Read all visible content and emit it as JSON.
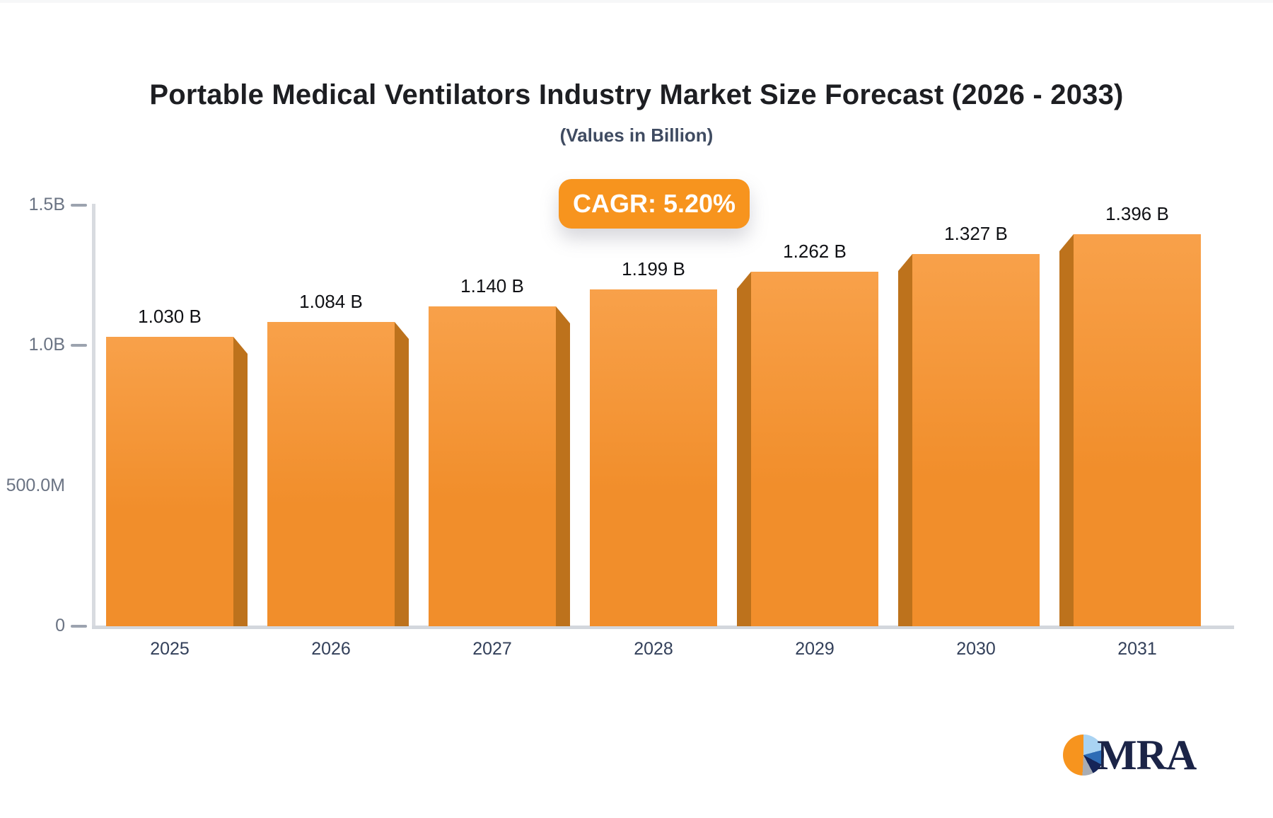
{
  "page": {
    "title": "Portable Medical Ventilators Industry Market Size Forecast (2026 - 2033)",
    "subtitle": "(Values in Billion)",
    "cagr_badge": "CAGR: 5.20%",
    "brand_name": "MRA"
  },
  "colors": {
    "accent_orange": "#F7941E",
    "bar_face_top": "#F8A14A",
    "bar_face_bottom": "#F18E2B",
    "bar_side": "#BD721C",
    "axis_line": "#D8DBE0",
    "tick_mark": "#9CA3AF",
    "y_label": "#6A7383",
    "x_label": "#33405A",
    "value_label": "#101115",
    "logo_navy": "#1B2447",
    "pie_lightblue": "#A9D3F2",
    "pie_royalblue": "#2E6CB5",
    "pie_navy": "#152558",
    "pie_gray": "#A8ADB5"
  },
  "chart_data": {
    "type": "bar",
    "title": "Portable Medical Ventilators Industry Market Size Forecast (2026 - 2033)",
    "subtitle": "(Values in Billion)",
    "annotation": "CAGR: 5.20%",
    "categories": [
      "2025",
      "2026",
      "2027",
      "2028",
      "2029",
      "2030",
      "2031"
    ],
    "values": [
      1.03,
      1.084,
      1.14,
      1.199,
      1.262,
      1.327,
      1.396
    ],
    "value_labels": [
      "1.030 B",
      "1.084 B",
      "1.140 B",
      "1.199 B",
      "1.262 B",
      "1.327 B",
      "1.396 B"
    ],
    "xlabel": "",
    "ylabel": "",
    "ylim": [
      0,
      1.5
    ],
    "yticks": [
      {
        "value": 1.5,
        "label": "1.5B",
        "tick": true
      },
      {
        "value": 1.0,
        "label": "1.0B",
        "tick": true
      },
      {
        "value": 0.5,
        "label": "500.0M",
        "tick": false
      },
      {
        "value": 0.0,
        "label": "0",
        "tick": true
      }
    ],
    "grid": false,
    "legend": false,
    "bar_style": "3d-extruded-orange"
  }
}
